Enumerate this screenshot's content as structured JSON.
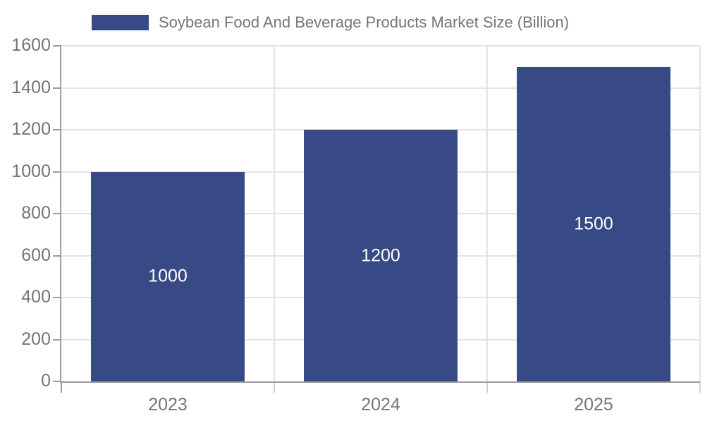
{
  "legend": {
    "label": "Soybean Food And Beverage Products Market Size (Billion)",
    "swatch_color": "#384A85"
  },
  "chart_data": {
    "type": "bar",
    "title": "Soybean Food And Beverage Products Market Size (Billion)",
    "categories": [
      "2023",
      "2024",
      "2025"
    ],
    "values": [
      1000,
      1200,
      1500
    ],
    "bar_labels": [
      "1000",
      "1200",
      "1500"
    ],
    "xlabel": "",
    "ylabel": "",
    "ylim": [
      0,
      1600
    ],
    "ytick_step": 200,
    "yticks": [
      0,
      200,
      400,
      600,
      800,
      1000,
      1200,
      1400,
      1600
    ],
    "grid": true,
    "legend_position": "top-left",
    "bar_label_position": "center",
    "colors": {
      "bar": "#384A85",
      "axis": "#9C9C9C",
      "gridline": "#E3E3E3",
      "bottom_tick": "#CFCFCF",
      "tick_label": "#757575",
      "bar_label": "#FFFFFF",
      "legend_label": "#757575",
      "background": "#FFFFFF"
    }
  }
}
